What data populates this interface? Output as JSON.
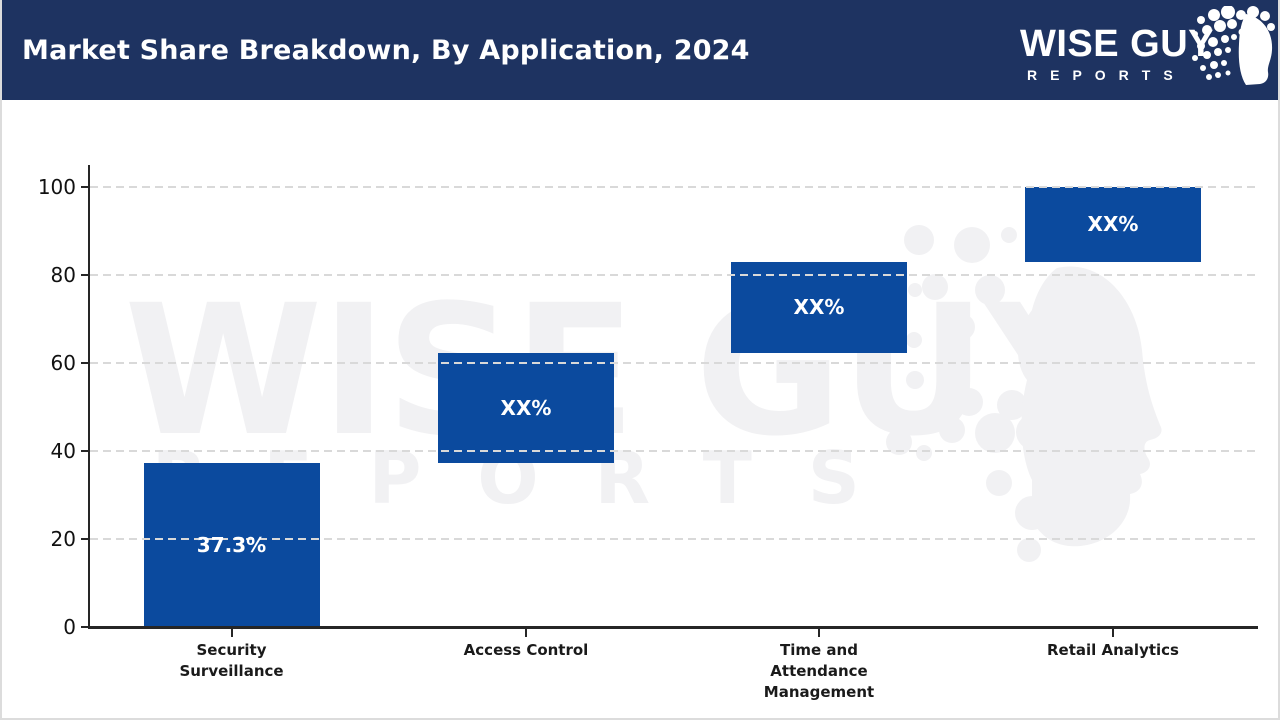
{
  "header": {
    "title": "Market Share Breakdown, By Application, 2024",
    "logo": {
      "brand_line1": "WISE GUY",
      "brand_line2": "REPORTS"
    }
  },
  "watermark": {
    "line1": "WISE GUY",
    "line2": "REPORTS"
  },
  "colors": {
    "header_bg": "#1e3361",
    "bar_fill": "#0b4a9e",
    "bar_label_text": "#ffffff",
    "axis": "#262626",
    "gridline": "#d9d9d9",
    "tick_label_text": "#111111",
    "watermark": "#f1f1f3",
    "logo_text": "#ffffff"
  },
  "chart_data": {
    "type": "bar",
    "subtype": "floating-waterfall",
    "title": "Market Share Breakdown, By Application, 2024",
    "categories": [
      "Security\nSurveillance",
      "Access Control",
      "Time and\nAttendance\nManagement",
      "Retail Analytics"
    ],
    "segments": [
      {
        "category": "Security Surveillance",
        "start": 0,
        "end": 37.3,
        "label": "37.3%"
      },
      {
        "category": "Access Control",
        "start": 37.3,
        "end": 62.3,
        "label": "XX%"
      },
      {
        "category": "Time and Attendance Management",
        "start": 62.3,
        "end": 83,
        "label": "XX%"
      },
      {
        "category": "Retail Analytics",
        "start": 83,
        "end": 100,
        "label": "XX%"
      }
    ],
    "ylim": [
      0,
      100
    ],
    "yticks": [
      0,
      20,
      40,
      60,
      80,
      100
    ],
    "grid": "horizontal-dashed",
    "legend": "none",
    "xlabel": "",
    "ylabel": ""
  }
}
